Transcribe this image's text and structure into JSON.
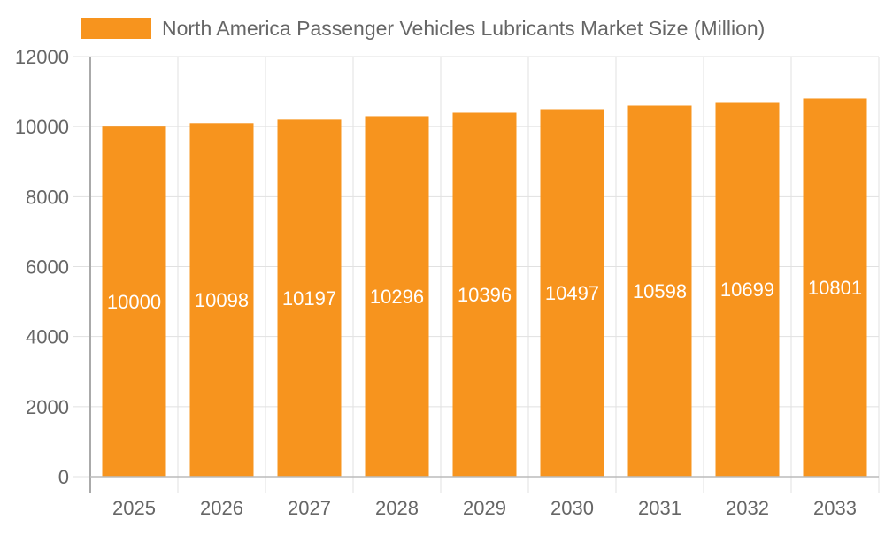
{
  "chart_data": {
    "type": "bar",
    "title": "",
    "xlabel": "",
    "ylabel": "",
    "legend": {
      "position": "top",
      "entries": [
        "North America Passenger Vehicles Lubricants Market Size (Million)"
      ]
    },
    "categories": [
      "2025",
      "2026",
      "2027",
      "2028",
      "2029",
      "2030",
      "2031",
      "2032",
      "2033"
    ],
    "series": [
      {
        "name": "North America Passenger Vehicles Lubricants Market Size (Million)",
        "values": [
          10000,
          10098,
          10197,
          10296,
          10396,
          10497,
          10598,
          10699,
          10801
        ],
        "color": "#F7941E"
      }
    ],
    "ylim": [
      0,
      12000
    ],
    "yticks": [
      0,
      2000,
      4000,
      6000,
      8000,
      10000,
      12000
    ],
    "grid": true,
    "data_labels": true
  }
}
